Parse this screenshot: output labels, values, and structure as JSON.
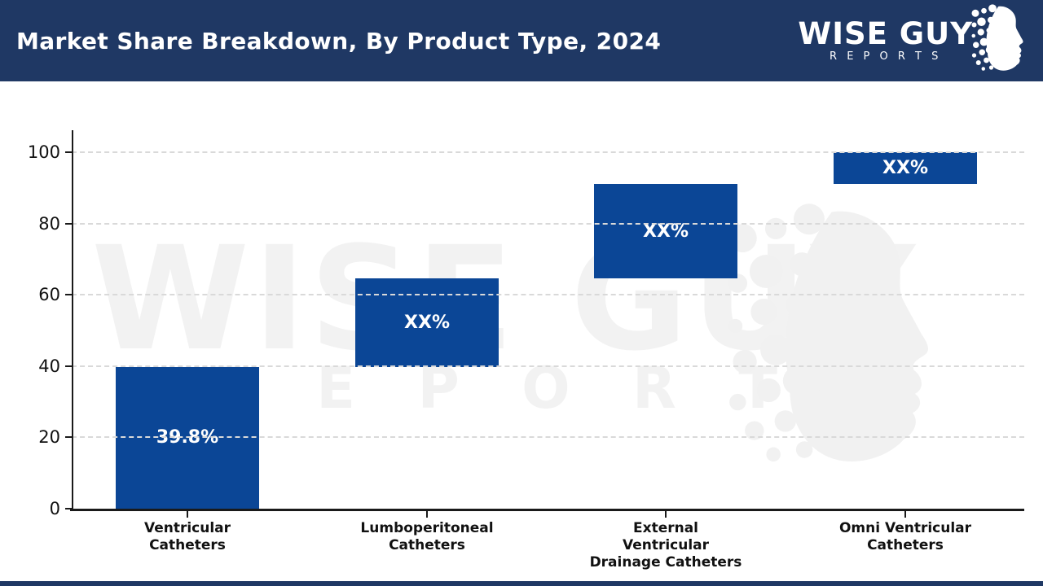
{
  "header": {
    "title": "Market Share Breakdown, By Product Type, 2024",
    "bg_color": "#1f3864",
    "logo": {
      "line1": "WISE GUY",
      "line2": "R E P O R T S",
      "icon": "head-dots-icon"
    }
  },
  "watermark": {
    "line1": "WISE GUY",
    "line2": "R E P O R T S",
    "icon": "head-dots-icon"
  },
  "footer": {
    "bg_color": "#1f3864"
  },
  "chart_data": {
    "type": "bar",
    "variant": "floating-waterfall",
    "title": "Market Share Breakdown, By Product Type, 2024",
    "categories": [
      "Ventricular Catheters",
      "Lumboperitoneal Catheters",
      "External Ventricular Drainage Catheters",
      "Omni Ventricular Catheters"
    ],
    "category_lines": [
      [
        "Ventricular",
        "Catheters"
      ],
      [
        "Lumboperitoneal",
        "Catheters"
      ],
      [
        "External",
        "Ventricular",
        "Drainage Catheters"
      ],
      [
        "Omni Ventricular",
        "Catheters"
      ]
    ],
    "segments": [
      {
        "category": "Ventricular Catheters",
        "start": 0,
        "end": 39.8,
        "label": "39.8%"
      },
      {
        "category": "Lumboperitoneal Catheters",
        "start": 39.8,
        "end": 64.5,
        "label": "XX%"
      },
      {
        "category": "External Ventricular Drainage Catheters",
        "start": 64.5,
        "end": 91.0,
        "label": "XX%"
      },
      {
        "category": "Omni Ventricular Catheters",
        "start": 91.0,
        "end": 100.0,
        "label": "XX%"
      }
    ],
    "yticks": [
      0,
      20,
      40,
      60,
      80,
      100
    ],
    "ylim": [
      0,
      105
    ],
    "xlabel": "",
    "ylabel": "",
    "legend": "none",
    "grid": "horizontal-dashed",
    "bar_color": "#0b4696",
    "bar_label_color": "#ffffff",
    "grid_color": "#d9d9d9",
    "axis_color": "#1a1a1a"
  }
}
